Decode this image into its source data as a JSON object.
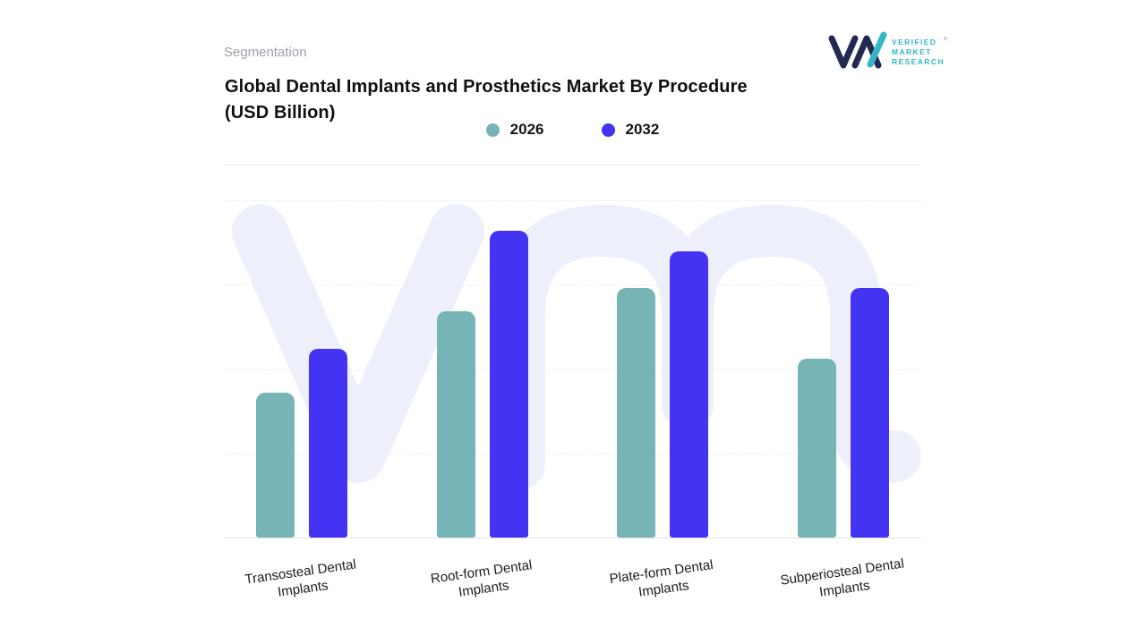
{
  "header": {
    "segmentation_label": "Segmentation",
    "title": "Global Dental Implants and Prosthetics Market By Procedure (USD Billion)"
  },
  "logo": {
    "alt": "Verified Market Research",
    "lines": [
      "VERIFIED",
      "MARKET",
      "RESEARCH"
    ],
    "registered_mark": "®",
    "colors": {
      "monogram": "#232a52",
      "accent": "#33b7c6",
      "registered": "#e0823f"
    }
  },
  "chart_data": {
    "type": "bar",
    "title": "Global Dental Implants and Prosthetics Market By Procedure (USD Billion)",
    "categories": [
      "Transosteal Dental Implants",
      "Root-form Dental Implants",
      "Plate-form Dental Implants",
      "Subperiosteal Dental Implants"
    ],
    "series": [
      {
        "name": "2026",
        "color": "#76b4b6",
        "values": [
          4.3,
          6.7,
          7.4,
          5.3
        ]
      },
      {
        "name": "2032",
        "color": "#4433f2",
        "values": [
          5.6,
          9.1,
          8.5,
          7.4
        ]
      }
    ],
    "ylim": [
      0,
      10
    ],
    "xlabel": "",
    "ylabel": "",
    "grid": "dashed horizontal, no tick labels",
    "legend_position": "top-center",
    "watermark": "vm-monogram",
    "watermark_color": "#edf0fb"
  }
}
